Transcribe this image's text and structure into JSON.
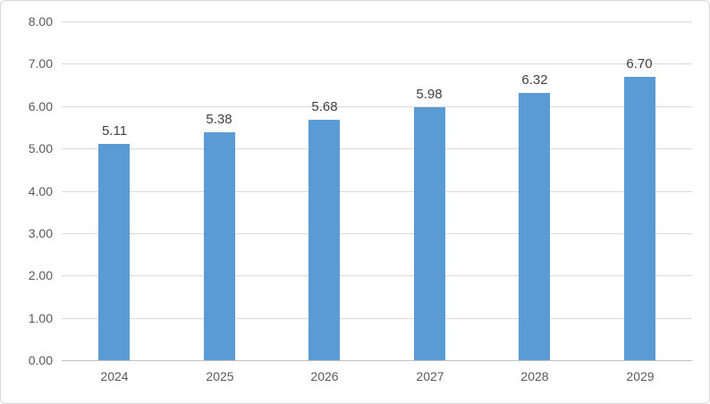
{
  "chart_data": {
    "type": "bar",
    "title": "",
    "xlabel": "",
    "ylabel": "",
    "categories": [
      "2024",
      "2025",
      "2026",
      "2027",
      "2028",
      "2029"
    ],
    "values": [
      5.11,
      5.38,
      5.68,
      5.98,
      6.32,
      6.7
    ],
    "value_labels": [
      "5.11",
      "5.38",
      "5.68",
      "5.98",
      "6.32",
      "6.70"
    ],
    "ylim": [
      0,
      8
    ],
    "ytick_step": 1,
    "ytick_labels": [
      "0.00",
      "1.00",
      "2.00",
      "3.00",
      "4.00",
      "5.00",
      "6.00",
      "7.00",
      "8.00"
    ],
    "grid": true,
    "legend": "none",
    "colors": {
      "bar_fill": "#5b9bd5",
      "gridline": "#d9d9d9",
      "axis_line": "#bfbfbf",
      "axis_text": "#595959",
      "data_label_text": "#404040",
      "background": "#ffffff",
      "chart_border": "#d7d7d7"
    }
  }
}
